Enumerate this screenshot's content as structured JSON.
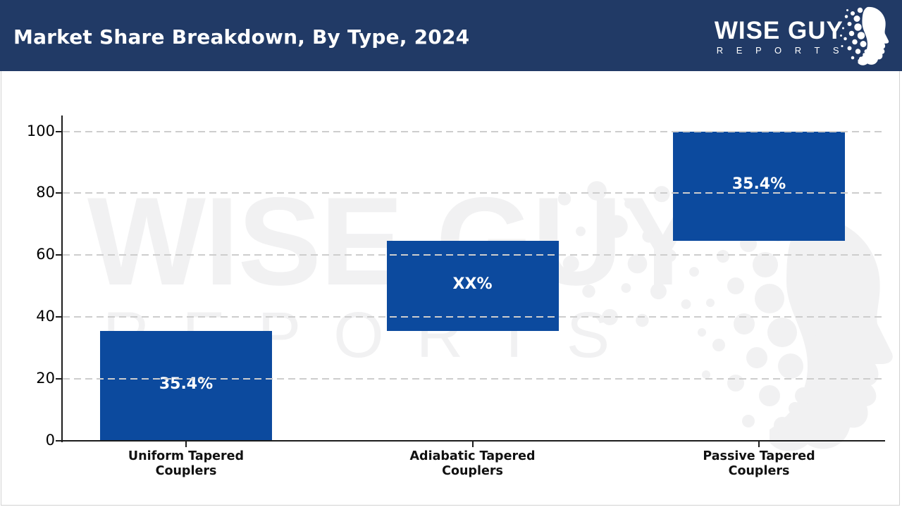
{
  "header": {
    "title": "Market Share Breakdown, By Type, 2024",
    "logo": {
      "line1": "WISE GUY",
      "line2": "R E P O R T S"
    }
  },
  "watermark": {
    "line1": "WISE GUY",
    "line2": "REPORTS"
  },
  "colors": {
    "header_bg": "#213a66",
    "bar_blue": "#0c4a9e",
    "bar_label_text": "#ffffff",
    "axis": "#1c1c1c",
    "gridline": "#cdcdcd",
    "watermark": "#f1f1f2"
  },
  "chart_data": {
    "type": "bar",
    "subtype": "waterfall-floating-bars",
    "title": "Market Share Breakdown, By Type, 2024",
    "categories": [
      "Uniform Tapered\nCouplers",
      "Adiabatic Tapered\nCouplers",
      "Passive Tapered\nCouplers"
    ],
    "segments": [
      {
        "category": "Uniform Tapered Couplers",
        "start": 0,
        "end": 35.4,
        "label": "35.4%"
      },
      {
        "category": "Adiabatic Tapered Couplers",
        "start": 35.4,
        "end": 64.6,
        "label": "XX%"
      },
      {
        "category": "Passive Tapered Couplers",
        "start": 64.6,
        "end": 100,
        "label": "35.4%"
      }
    ],
    "xlabel": "",
    "ylabel": "",
    "ylim": [
      0,
      100
    ],
    "yticks": [
      0,
      20,
      40,
      60,
      80,
      100
    ],
    "grid": "horizontal-dashed",
    "legend": "none",
    "bar_color": "#0c4a9e",
    "label_color": "#ffffff"
  }
}
